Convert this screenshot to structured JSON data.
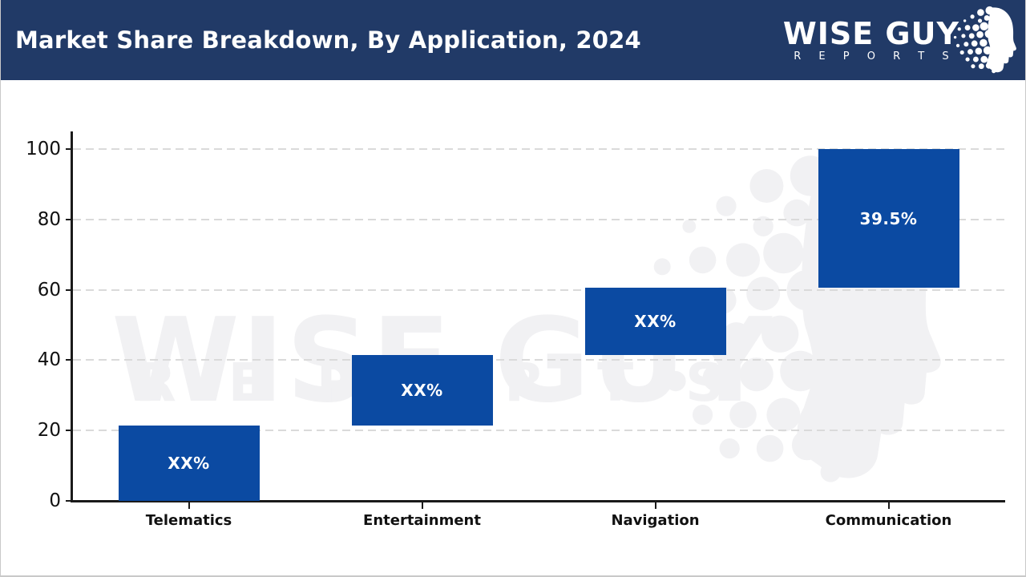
{
  "header": {
    "title": "Market Share Breakdown, By Application, 2024",
    "logo": {
      "line1": "WISE GUY",
      "line2": "R E P O R T S",
      "head_icon": "dotted-head-profile"
    }
  },
  "watermark": {
    "title": "WISE GUY",
    "subtitle": "R E P O R T S",
    "head_icon": "dotted-head-profile"
  },
  "colors": {
    "header_bg": "#213a67",
    "bar_blue": "#0b4aa2",
    "bar_label": "#ffffff",
    "gridline": "#dadada",
    "axis": "#1a1a1a",
    "watermark": "#f1f1f3"
  },
  "chart_data": {
    "type": "bar",
    "subtype": "waterfall",
    "title": "Market Share Breakdown, By Application, 2024",
    "categories": [
      "Telematics",
      "Entertainment",
      "Navigation",
      "Communication"
    ],
    "segments": [
      {
        "category": "Telematics",
        "start": 0,
        "end": 21.5,
        "value_label": "XX%"
      },
      {
        "category": "Entertainment",
        "start": 21.5,
        "end": 41.5,
        "value_label": "XX%"
      },
      {
        "category": "Navigation",
        "start": 41.5,
        "end": 60.5,
        "value_label": "XX%"
      },
      {
        "category": "Communication",
        "start": 60.5,
        "end": 100,
        "value_label": "39.5%"
      }
    ],
    "xlabel": "",
    "ylabel": "",
    "ylim": [
      0,
      100
    ],
    "yticks": [
      0,
      20,
      40,
      60,
      80,
      100
    ],
    "grid": "horizontal-dashed",
    "legend": "none"
  }
}
